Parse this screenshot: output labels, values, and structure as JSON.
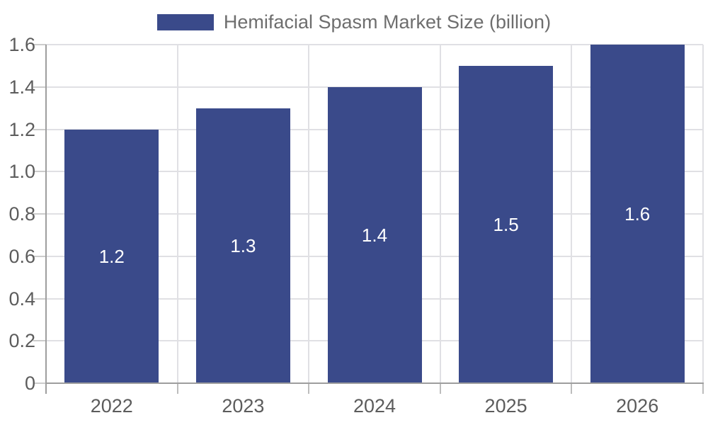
{
  "chart_data": {
    "type": "bar",
    "title": "Hemifacial Spasm Market Size (billion)",
    "categories": [
      "2022",
      "2023",
      "2024",
      "2025",
      "2026"
    ],
    "values": [
      1.2,
      1.3,
      1.4,
      1.5,
      1.6
    ],
    "value_labels": [
      "1.2",
      "1.3",
      "1.4",
      "1.5",
      "1.6"
    ],
    "series": [
      {
        "name": "Hemifacial Spasm Market Size (billion)",
        "values": [
          1.2,
          1.3,
          1.4,
          1.5,
          1.6
        ]
      }
    ],
    "xlabel": "",
    "ylabel": "",
    "ylim": [
      0,
      1.6
    ],
    "yticks": [
      0,
      0.2,
      0.4,
      0.6,
      0.8,
      1.0,
      1.2,
      1.4,
      1.6
    ],
    "ytick_labels": [
      "0",
      "0.2",
      "0.4",
      "0.6",
      "0.8",
      "1.0",
      "1.2",
      "1.4",
      "1.6"
    ],
    "grid": true,
    "legend_position": "top-center"
  },
  "legend": {
    "label": "Hemifacial Spasm Market Size (billion)"
  },
  "colors": {
    "bar": "#3a4a8a",
    "value_label": "#ffffff",
    "axis_line": "#9e9e9e",
    "gridline": "#e0e0e4",
    "tick_mark": "#cccccc",
    "xtick_mark": "#bdbdbd",
    "axis_text": "#5c5c5c",
    "legend_text": "#6e6e6e",
    "background": "#ffffff"
  }
}
